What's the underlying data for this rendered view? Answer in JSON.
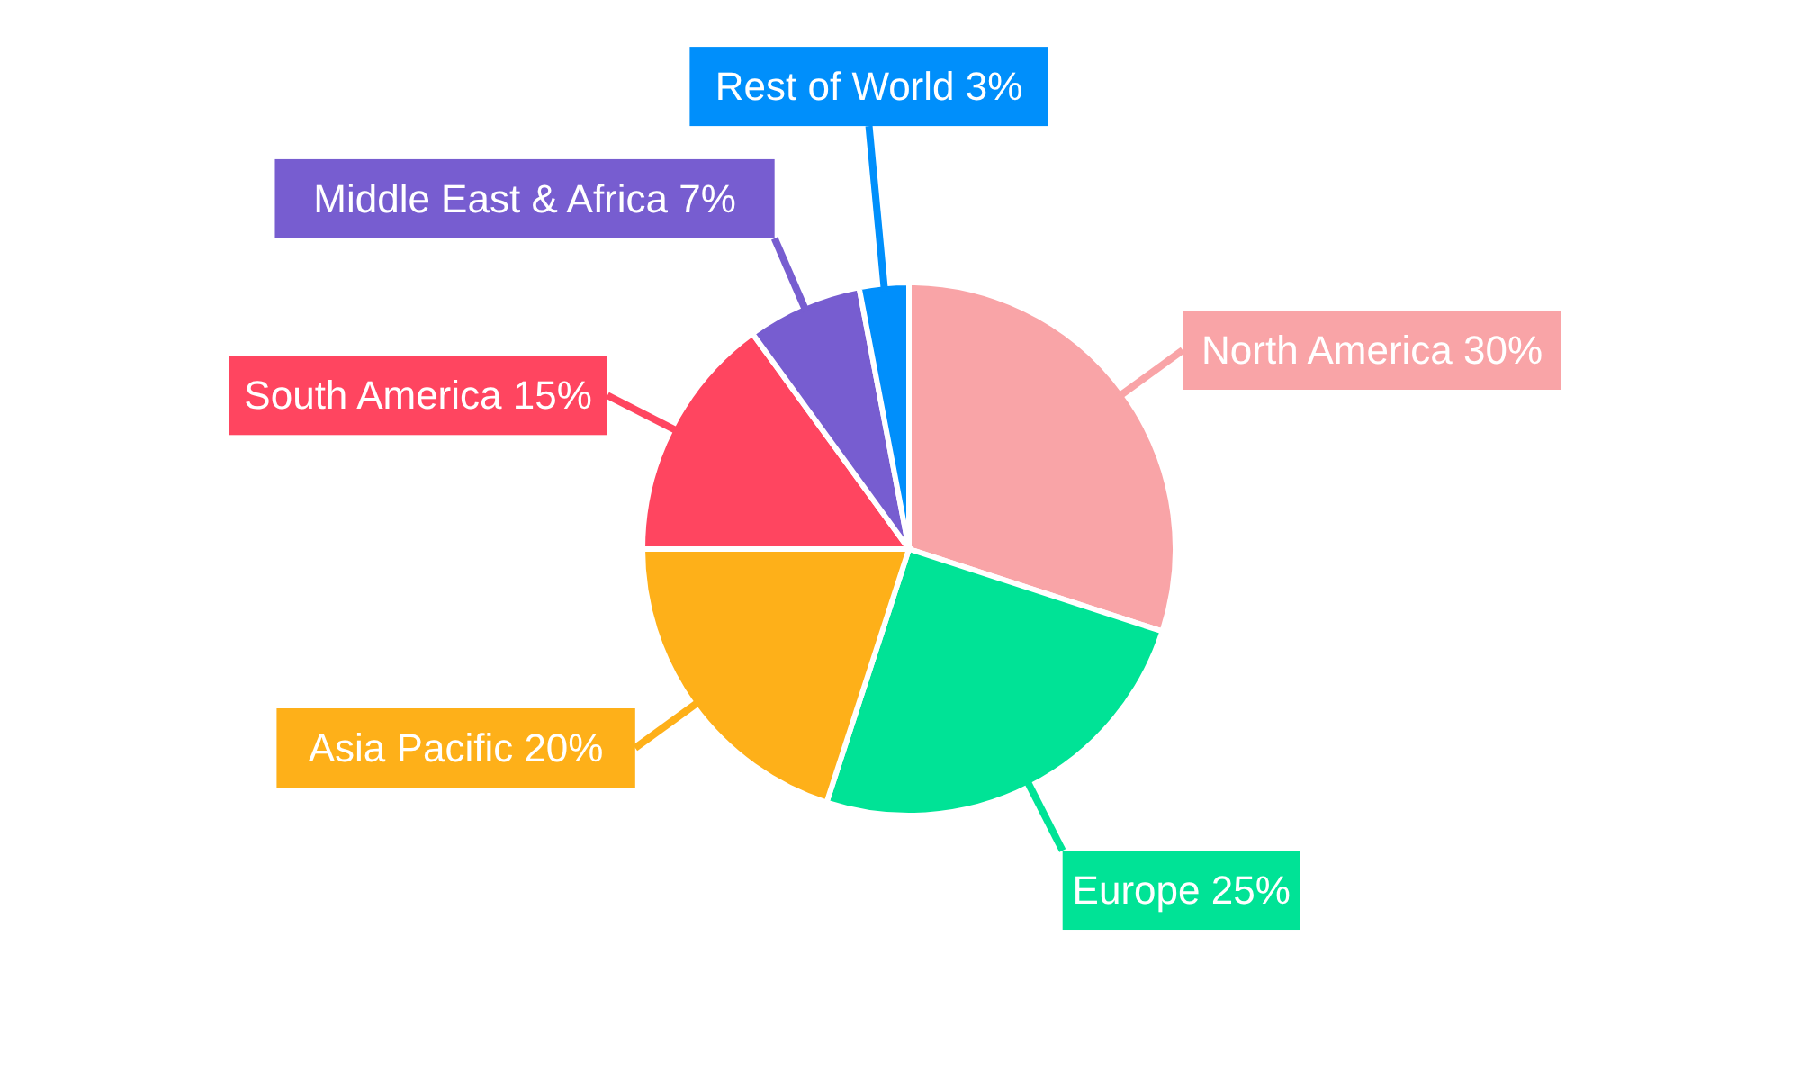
{
  "chart_data": {
    "type": "pie",
    "categories": [
      "North America",
      "Europe",
      "Asia Pacific",
      "South America",
      "Middle East & Africa",
      "Rest of World"
    ],
    "values": [
      30,
      25,
      20,
      15,
      7,
      3
    ],
    "value_labels": [
      "30%",
      "25%",
      "20%",
      "15%",
      "7%",
      "3%"
    ],
    "colors": [
      "#f9a4a7",
      "#00e396",
      "#feb019",
      "#ff4560",
      "#775dd0",
      "#008ffb"
    ]
  }
}
